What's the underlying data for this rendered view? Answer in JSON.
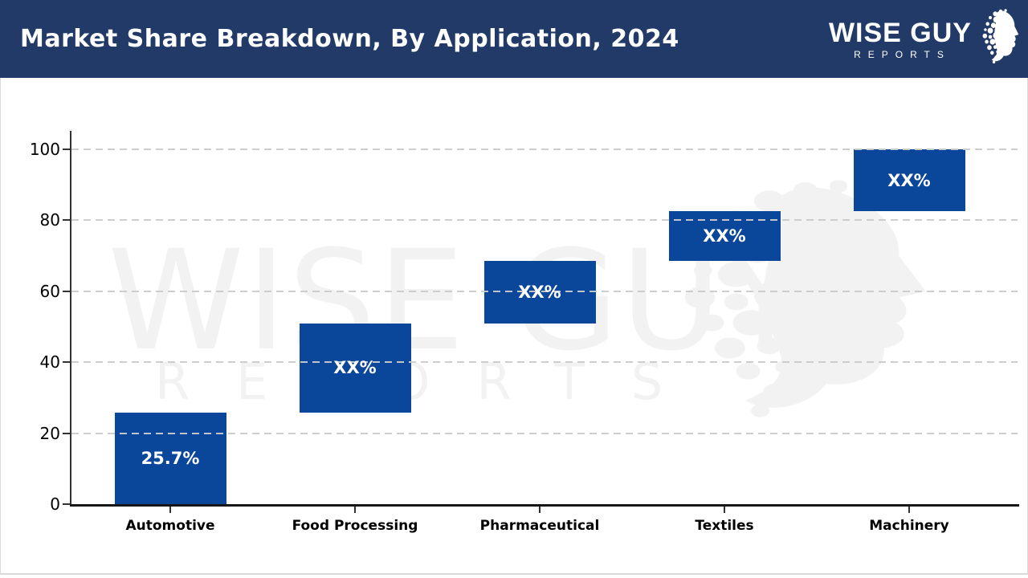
{
  "header": {
    "title": "Market Share Breakdown, By Application, 2024",
    "logo": {
      "line1": "WISE GUY",
      "line2": "REPORTS"
    }
  },
  "watermark": {
    "line1": "WISE GUY",
    "line2": "REPORTS"
  },
  "chart_data": {
    "type": "waterfall",
    "title": "Market Share Breakdown, By Application, 2024",
    "categories": [
      "Automotive",
      "Food Processing",
      "Pharmaceutical",
      "Textiles",
      "Machinery"
    ],
    "segments": [
      {
        "category": "Automotive",
        "start": 0,
        "end": 25.7,
        "label": "25.7%"
      },
      {
        "category": "Food Processing",
        "start": 25.7,
        "end": 51,
        "label": "XX%"
      },
      {
        "category": "Pharmaceutical",
        "start": 51,
        "end": 68.5,
        "label": "XX%"
      },
      {
        "category": "Textiles",
        "start": 68.5,
        "end": 82.5,
        "label": "XX%"
      },
      {
        "category": "Machinery",
        "start": 82.5,
        "end": 100,
        "label": "XX%"
      }
    ],
    "y_ticks": [
      0,
      20,
      40,
      60,
      80,
      100
    ],
    "ylim": [
      0,
      105
    ],
    "xlabel": "",
    "ylabel": "",
    "grid": "horizontal-dashed",
    "legend": "none",
    "colors": {
      "bar": "#0a4699",
      "bar_label": "#ffffff",
      "grid": "#cbcbcb",
      "axis": "#333333",
      "header_bg": "#223a67",
      "watermark": "#f2f2f2"
    }
  }
}
